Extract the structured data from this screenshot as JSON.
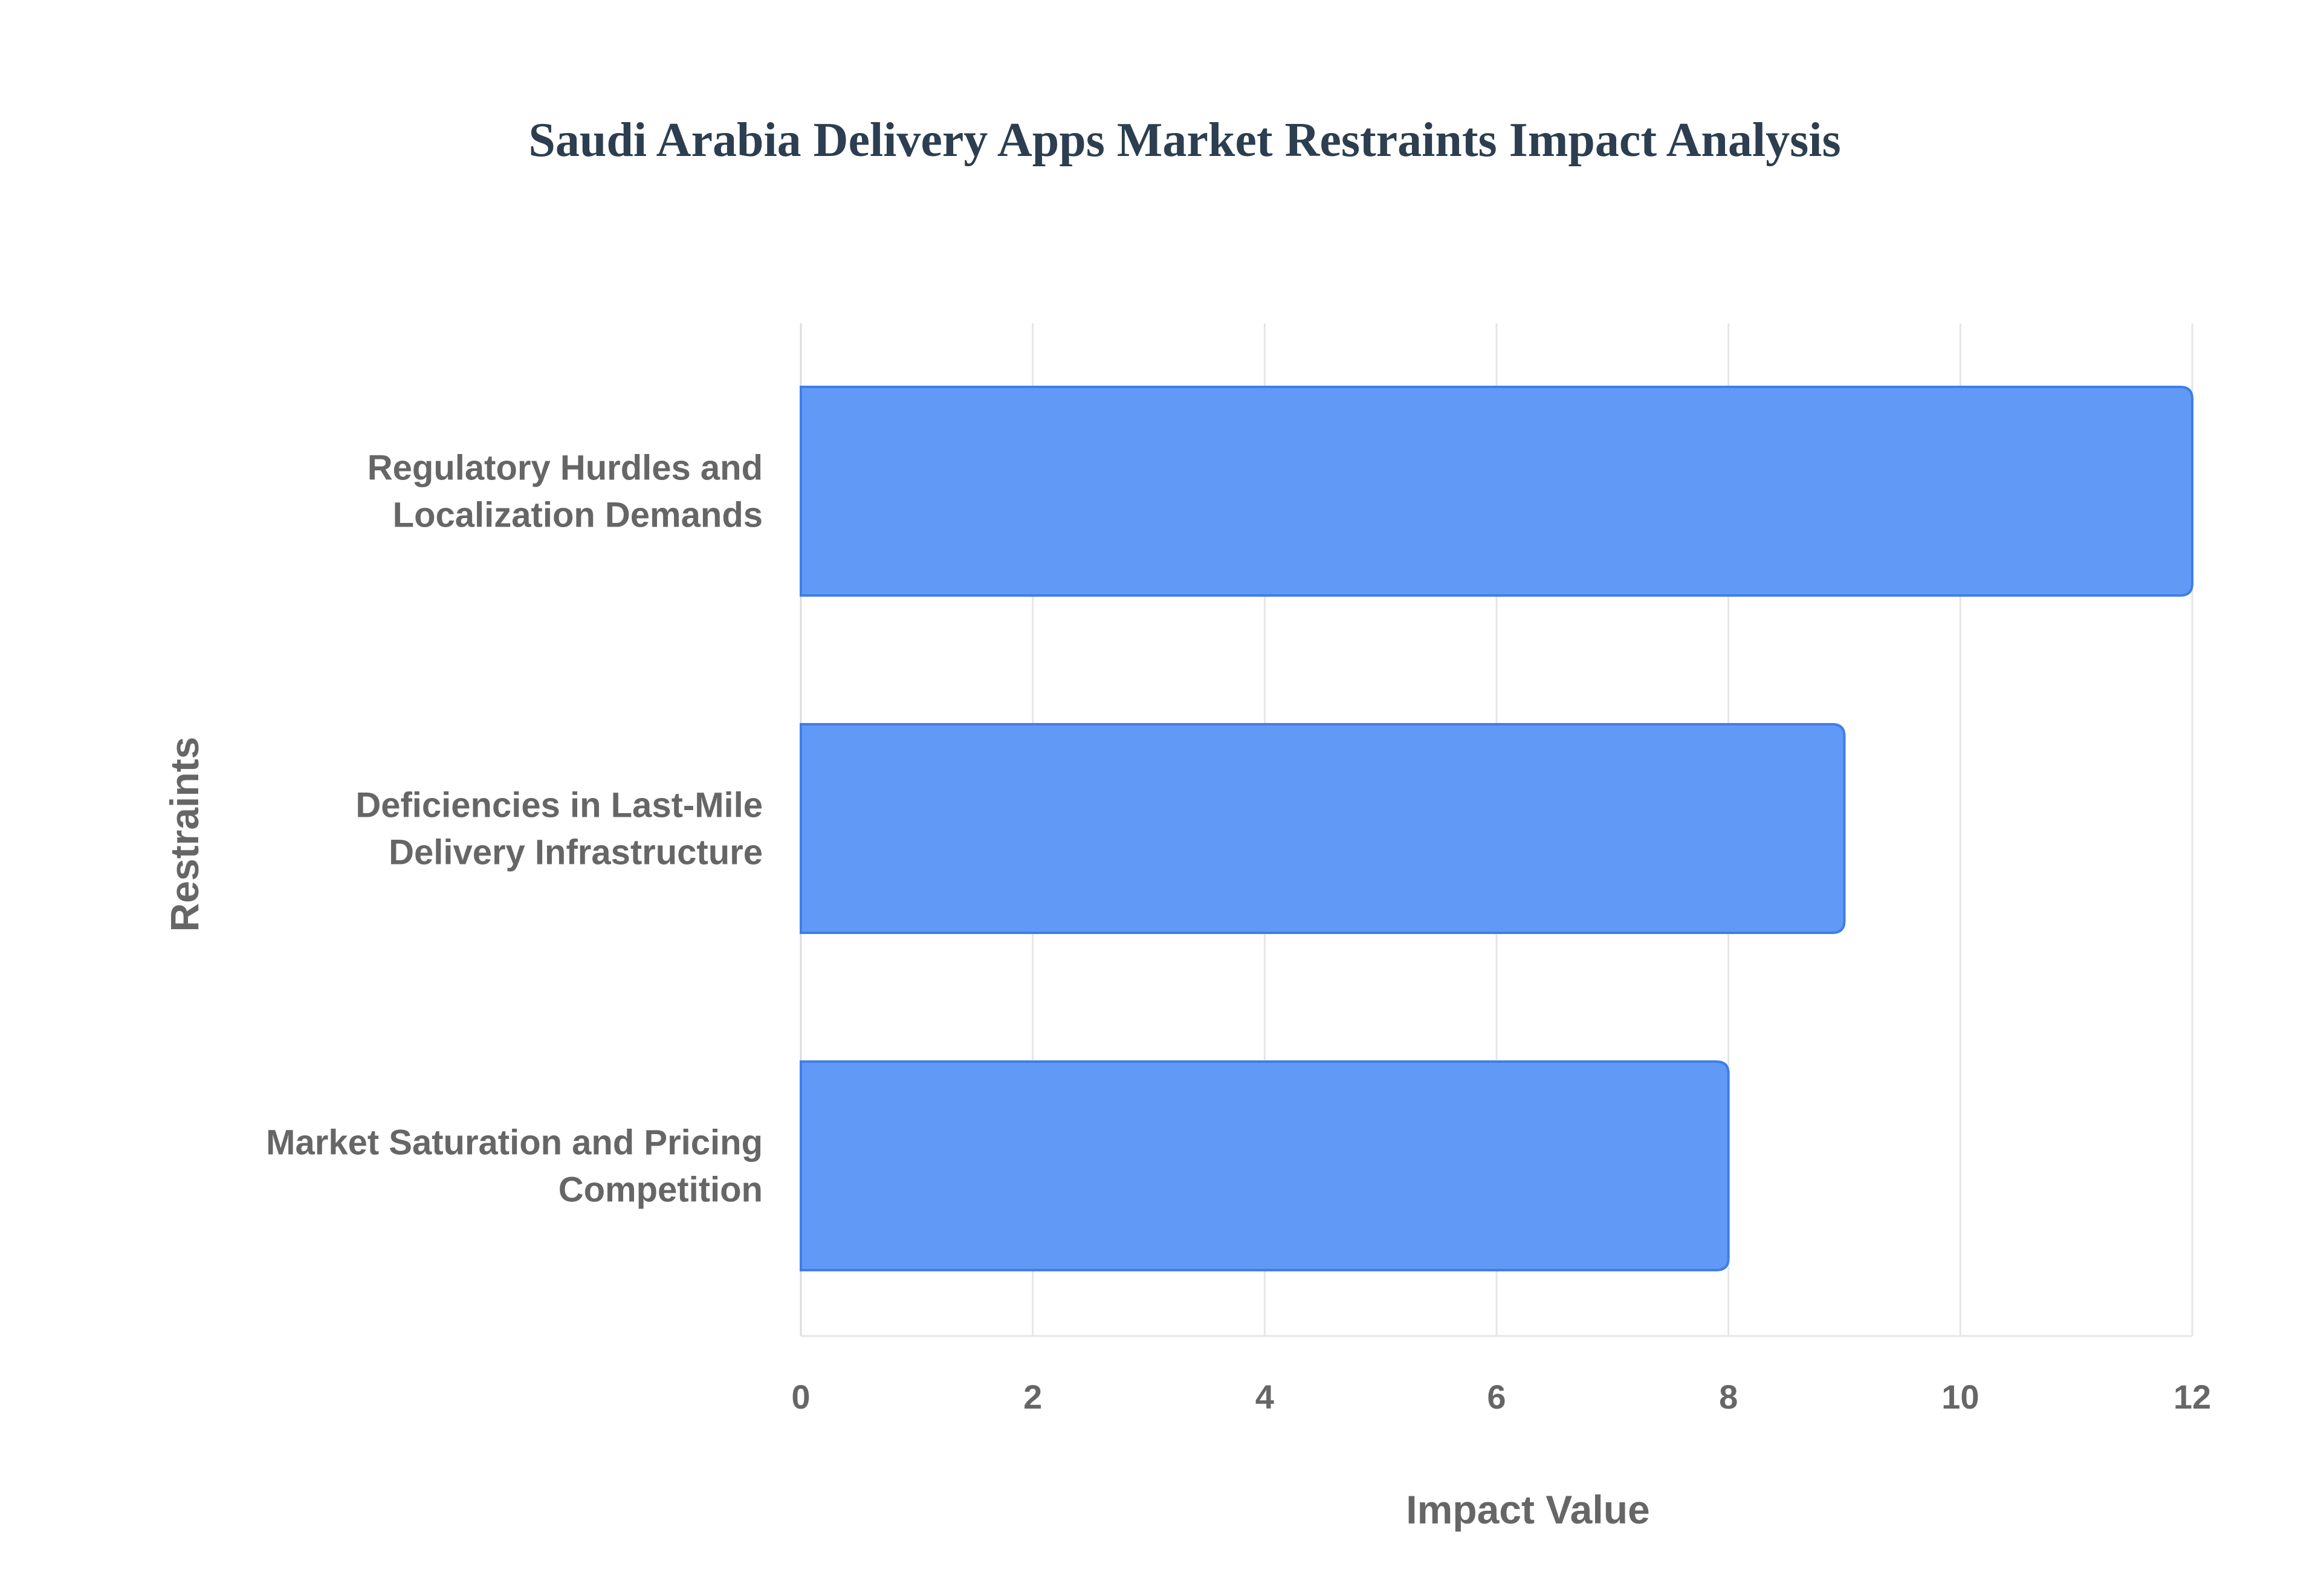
{
  "chart_data": {
    "type": "bar",
    "orientation": "horizontal",
    "title": "Saudi Arabia Delivery Apps Market Restraints Impact Analysis",
    "xlabel": "Impact Value",
    "ylabel": "Restraints",
    "categories": [
      [
        "Regulatory Hurdles and",
        "Localization Demands"
      ],
      [
        "Deficiencies in Last-Mile",
        "Delivery Infrastructure"
      ],
      [
        "Market Saturation and Pricing",
        "Competition"
      ]
    ],
    "values": [
      12,
      9,
      8
    ],
    "xlim": [
      0,
      12
    ],
    "xticks": [
      "0",
      "2",
      "4",
      "6",
      "8",
      "10",
      "12"
    ],
    "grid": true,
    "legend": "none",
    "colors": {
      "bar_fill": "#6199f6",
      "bar_stroke": "#3f7ee8",
      "title": "#2c3e50",
      "text": "#666666",
      "grid": "#e6e6e6"
    }
  }
}
